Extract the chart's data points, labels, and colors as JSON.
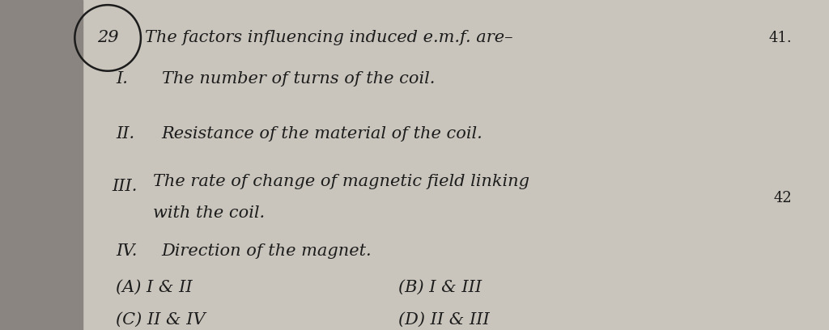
{
  "bg_color": "#c9c5bc",
  "left_strip_color": "#8a8580",
  "text_color": "#1c1c1c",
  "q_number": "29",
  "q_number_right": "41.",
  "q_number_right2": "42",
  "question": "The factors influencing induced e.m.f. are–",
  "items": [
    {
      "roman": "I.",
      "text": "The number of turns of the coil."
    },
    {
      "roman": "II.",
      "text": "Resistance of the material of the coil."
    },
    {
      "roman": "III.",
      "text_line1": "The rate of change of magnetic field linking",
      "text_line2": "with the coil."
    },
    {
      "roman": "IV.",
      "text": "Direction of the magnet."
    }
  ],
  "options_row1": [
    {
      "label": "(A)",
      "text": "I & II"
    },
    {
      "label": "(B)",
      "text": "I & III"
    }
  ],
  "options_row2": [
    {
      "label": "(C)",
      "text": "II & IV"
    },
    {
      "label": "(D)",
      "text": "II & III"
    }
  ],
  "fig_width": 10.24,
  "fig_height": 4.08,
  "dpi": 100
}
